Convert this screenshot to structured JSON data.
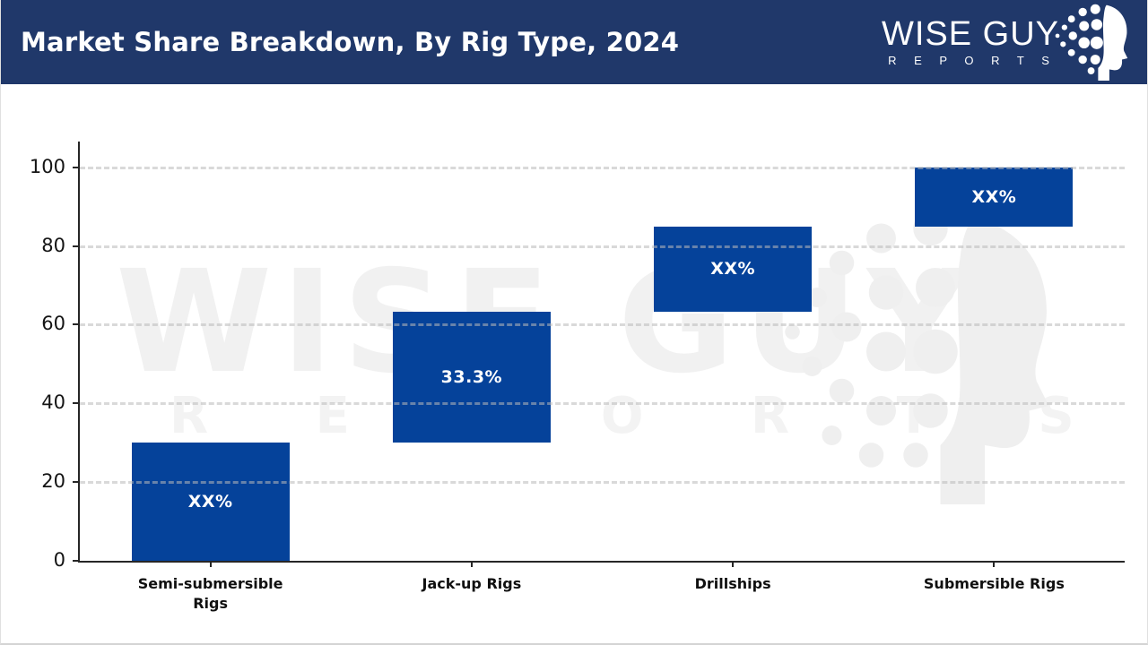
{
  "header": {
    "title": "Market Share Breakdown, By Rig Type, 2024",
    "logo": {
      "line1": "WISE GUY",
      "line2": "R E P O R T S"
    }
  },
  "watermark": {
    "line1": "WISE GUY",
    "line2": "R E P O R T S"
  },
  "colors": {
    "header_bg": "#20386a",
    "bar": "#05429a",
    "bar_label": "#ffffff",
    "axis": "#262626",
    "gridline": "#bbbbbb",
    "watermark": "#f1f1f1"
  },
  "chart_data": {
    "type": "bar",
    "variant": "floating-segment-waterfall",
    "title": "Market Share Breakdown, By Rig Type, 2024",
    "categories": [
      "Semi-submersible Rigs",
      "Jack-up Rigs",
      "Drillships",
      "Submersible Rigs"
    ],
    "segments": [
      {
        "category": "Semi-submersible Rigs",
        "start": 0,
        "end": 30,
        "height_pct": 30,
        "label": "XX%"
      },
      {
        "category": "Jack-up Rigs",
        "start": 30,
        "end": 63.3,
        "height_pct": 33.3,
        "label": "33.3%"
      },
      {
        "category": "Drillships",
        "start": 63.3,
        "end": 85,
        "height_pct": 21.7,
        "label": "XX%"
      },
      {
        "category": "Submersible Rigs",
        "start": 85,
        "end": 100,
        "height_pct": 15,
        "label": "XX%"
      }
    ],
    "ylim": [
      0,
      100
    ],
    "yticks": [
      0,
      20,
      40,
      60,
      80,
      100
    ],
    "xlabel": "",
    "ylabel": "",
    "grid": "horizontal-dashed-over-bars",
    "legend": "none"
  }
}
